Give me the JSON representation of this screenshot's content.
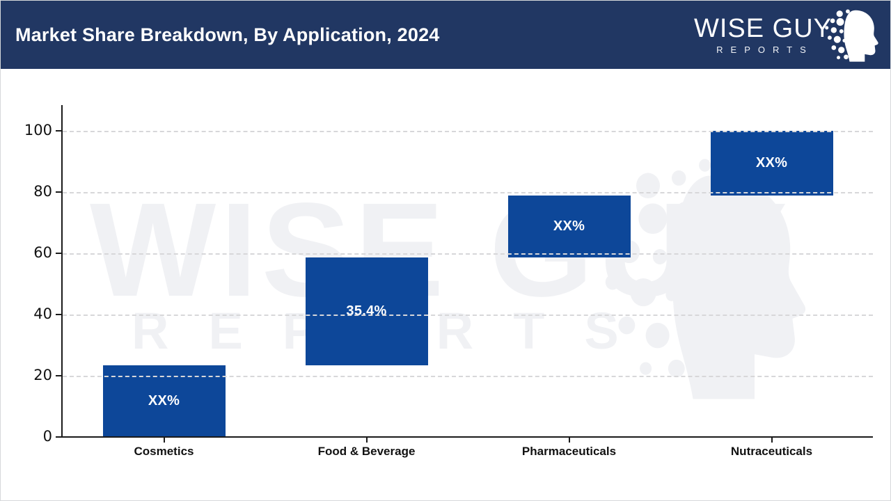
{
  "header": {
    "title": "Market Share Breakdown, By Application, 2024",
    "logo": {
      "line1": "WISE GUY",
      "line2": "REPORTS"
    }
  },
  "watermark": {
    "line1": "WISE GUY",
    "line2": "REPORTS"
  },
  "colors": {
    "header_bg": "#213763",
    "bar": "#0d4799",
    "axis": "#1a1a1a",
    "gridline": "#d7d7d9",
    "bar_label": "#ffffff",
    "watermark": "#f0f1f4"
  },
  "chart_data": {
    "type": "bar",
    "style": "waterfall",
    "title": "Market Share Breakdown, By Application, 2024",
    "categories": [
      "Cosmetics",
      "Food & Beverage",
      "Pharmaceuticals",
      "Nutraceuticals"
    ],
    "segments": [
      {
        "category": "Cosmetics",
        "start": 0,
        "end": 23.3,
        "label": "XX%"
      },
      {
        "category": "Food & Beverage",
        "start": 23.3,
        "end": 58.7,
        "label": "35.4%"
      },
      {
        "category": "Pharmaceuticals",
        "start": 58.7,
        "end": 78.9,
        "label": "XX%"
      },
      {
        "category": "Nutraceuticals",
        "start": 78.9,
        "end": 100,
        "label": "XX%"
      }
    ],
    "xlabel": "",
    "ylabel": "",
    "ylim": [
      0,
      100
    ],
    "yticks": [
      0,
      20,
      40,
      60,
      80,
      100
    ],
    "grid": "horizontal-dashed",
    "legend": "none"
  }
}
